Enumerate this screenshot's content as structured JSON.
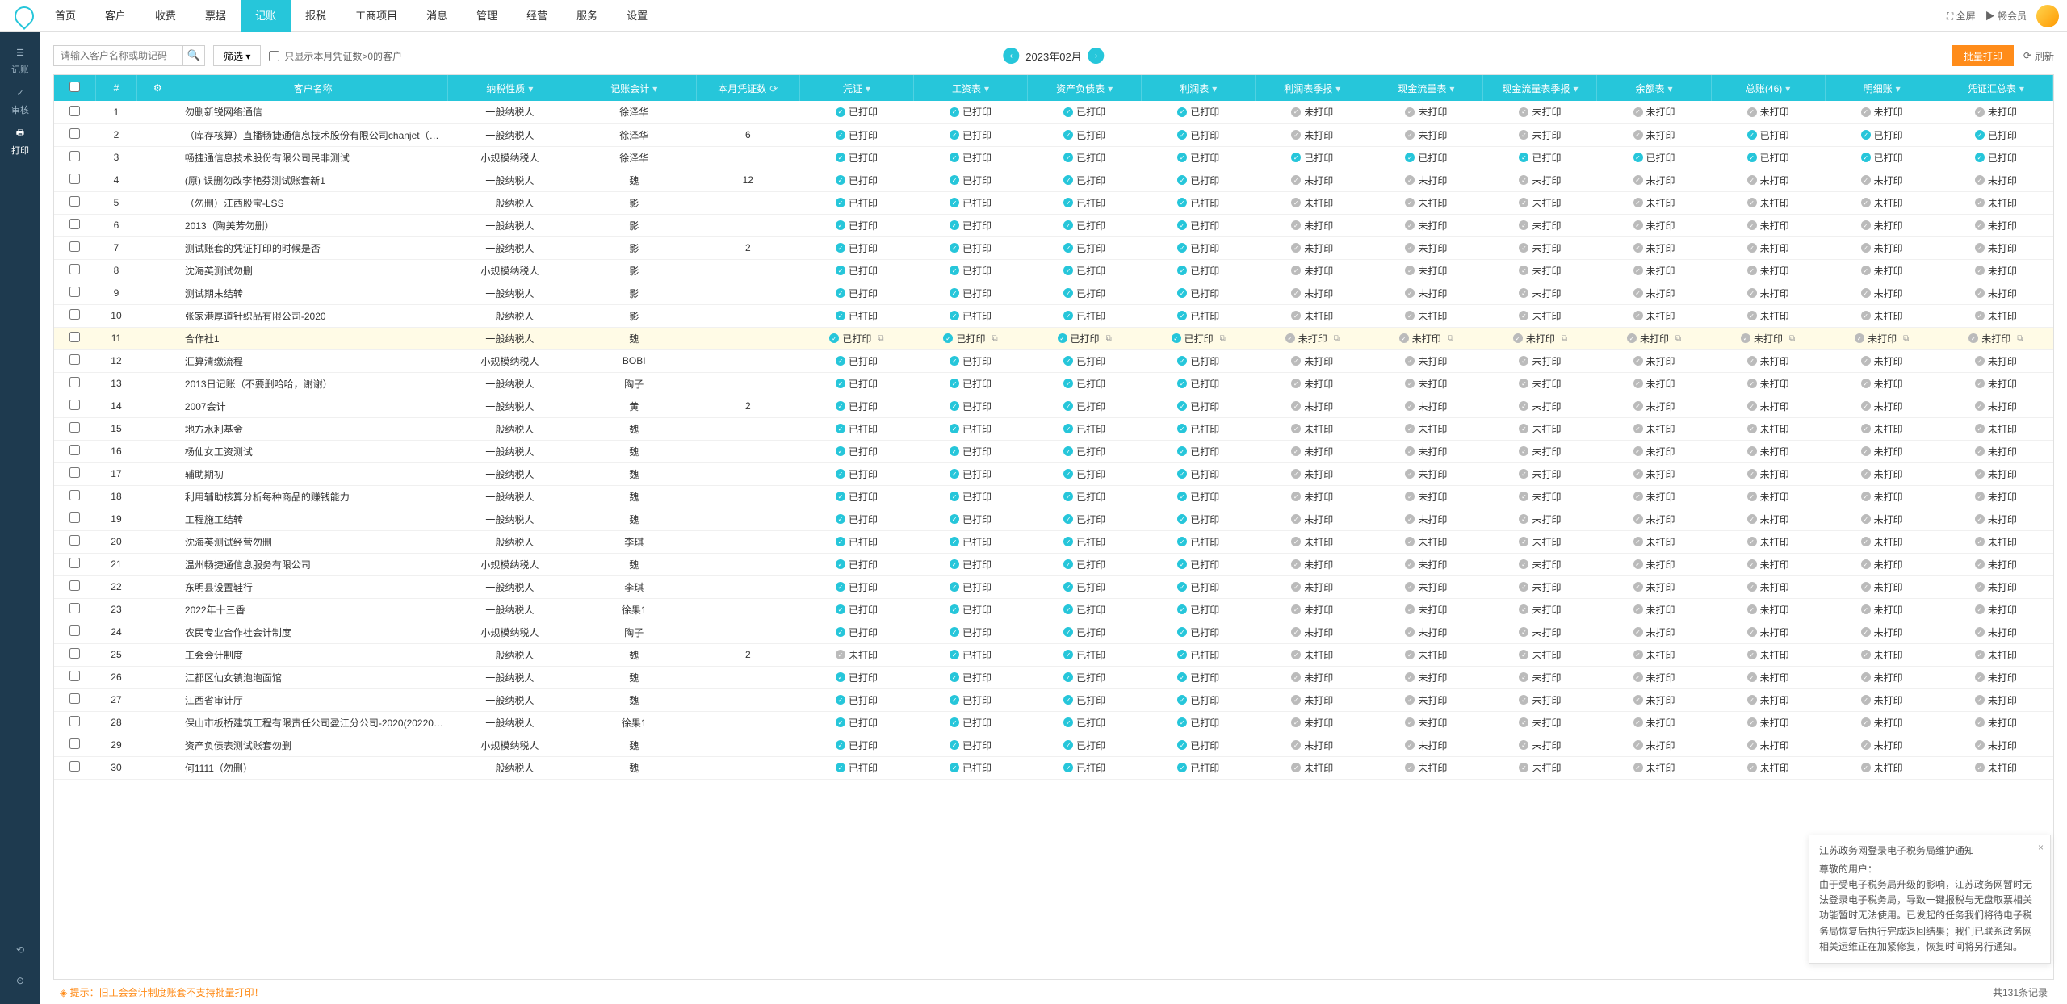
{
  "nav": {
    "tabs": [
      "首页",
      "客户",
      "收费",
      "票据",
      "记账",
      "报税",
      "工商项目",
      "消息",
      "管理",
      "经营",
      "服务",
      "设置"
    ],
    "active": 4,
    "fullscreen": "全屏",
    "vip": "畅会员"
  },
  "sidebar": {
    "items": [
      {
        "icon": "☰",
        "label": "记账"
      },
      {
        "icon": "✓",
        "label": "审核"
      },
      {
        "icon": "🖶",
        "label": "打印"
      }
    ],
    "active": 2,
    "bottom": [
      "⟲",
      "⊙"
    ]
  },
  "toolbar": {
    "search_placeholder": "请输入客户名称或助记码",
    "filter_btn": "筛选 ▾",
    "only_show": "只显示本月凭证数>0的客户",
    "date": "2023年02月",
    "batch_print": "批量打印",
    "refresh": "刷新"
  },
  "columns": [
    "",
    "#",
    "",
    "客户名称",
    "纳税性质",
    "记账会计",
    "本月凭证数",
    "凭证",
    "工资表",
    "资产负债表",
    "利润表",
    "利润表季报",
    "现金流量表",
    "现金流量表季报",
    "余额表",
    "总账(46)",
    "明细账",
    "凭证汇总表"
  ],
  "status": {
    "printed": "已打印",
    "not_printed": "未打印",
    "dash": "——"
  },
  "rows": [
    {
      "n": 1,
      "name": "勿删新锐网络通信",
      "tax": "一般纳税人",
      "acc": "徐泽华",
      "cnt": "",
      "hl": false,
      "ext": false,
      "s": [
        "p",
        "p",
        "p",
        "p",
        "n",
        "n",
        "n",
        "n",
        "n",
        "n",
        "n"
      ]
    },
    {
      "n": 2,
      "name": "（库存核算）直播畅捷通信息技术股份有限公司chanjet（原…",
      "tax": "一般纳税人",
      "acc": "徐泽华",
      "cnt": "6",
      "hl": false,
      "ext": false,
      "s": [
        "p",
        "p",
        "p",
        "p",
        "n",
        "n",
        "n",
        "n",
        "p",
        "p",
        "p"
      ]
    },
    {
      "n": 3,
      "name": "畅捷通信息技术股份有限公司民非测试",
      "tax": "小规模纳税人",
      "acc": "徐泽华",
      "cnt": "",
      "hl": false,
      "ext": false,
      "s": [
        "p",
        "p",
        "p",
        "p",
        "p",
        "p",
        "p",
        "p",
        "p",
        "p",
        "p"
      ]
    },
    {
      "n": 4,
      "name": "(原) 误删勿改李艳芬测试账套新1",
      "tax": "一般纳税人",
      "acc": "魏",
      "cnt": "12",
      "hl": false,
      "ext": false,
      "s": [
        "p",
        "p",
        "p",
        "p",
        "n",
        "n",
        "n",
        "n",
        "n",
        "n",
        "n"
      ]
    },
    {
      "n": 5,
      "name": "（勿删）江西股宝-LSS",
      "tax": "一般纳税人",
      "acc": "影",
      "cnt": "",
      "hl": false,
      "ext": false,
      "s": [
        "p",
        "p",
        "p",
        "p",
        "n",
        "n",
        "n",
        "n",
        "n",
        "n",
        "n"
      ]
    },
    {
      "n": 6,
      "name": "2013（陶美芳勿删）",
      "tax": "一般纳税人",
      "acc": "影",
      "cnt": "",
      "hl": false,
      "ext": false,
      "s": [
        "p",
        "p",
        "p",
        "p",
        "n",
        "n",
        "n",
        "n",
        "n",
        "n",
        "n"
      ]
    },
    {
      "n": 7,
      "name": "测试账套的凭证打印的时候是否",
      "tax": "一般纳税人",
      "acc": "影",
      "cnt": "2",
      "hl": false,
      "ext": false,
      "s": [
        "p",
        "p",
        "p",
        "p",
        "n",
        "n",
        "n",
        "n",
        "n",
        "n",
        "n"
      ]
    },
    {
      "n": 8,
      "name": "沈海英测试勿删",
      "tax": "小规模纳税人",
      "acc": "影",
      "cnt": "",
      "hl": false,
      "ext": false,
      "s": [
        "p",
        "p",
        "p",
        "p",
        "n",
        "n",
        "n",
        "n",
        "n",
        "n",
        "n"
      ]
    },
    {
      "n": 9,
      "name": "测试期末结转",
      "tax": "一般纳税人",
      "acc": "影",
      "cnt": "",
      "hl": false,
      "ext": false,
      "s": [
        "p",
        "p",
        "p",
        "p",
        "n",
        "n",
        "n",
        "n",
        "n",
        "n",
        "n"
      ]
    },
    {
      "n": 10,
      "name": "张家港厚道针织品有限公司-2020",
      "tax": "一般纳税人",
      "acc": "影",
      "cnt": "",
      "hl": false,
      "ext": false,
      "s": [
        "p",
        "p",
        "p",
        "p",
        "n",
        "n",
        "n",
        "n",
        "n",
        "n",
        "n"
      ]
    },
    {
      "n": 11,
      "name": "合作社1",
      "tax": "一般纳税人",
      "acc": "魏",
      "cnt": "",
      "hl": true,
      "ext": true,
      "s": [
        "p",
        "p",
        "p",
        "p",
        "n",
        "n",
        "n",
        "n",
        "n",
        "n",
        "n"
      ]
    },
    {
      "n": 12,
      "name": "汇算清缴流程",
      "tax": "小规模纳税人",
      "acc": "BOBI",
      "cnt": "",
      "hl": false,
      "ext": false,
      "s": [
        "p",
        "p",
        "p",
        "p",
        "n",
        "n",
        "n",
        "n",
        "n",
        "n",
        "n"
      ]
    },
    {
      "n": 13,
      "name": "2013日记账（不要删哈哈，谢谢）",
      "tax": "一般纳税人",
      "acc": "陶子",
      "cnt": "",
      "hl": false,
      "ext": false,
      "s": [
        "p",
        "p",
        "p",
        "p",
        "n",
        "n",
        "n",
        "n",
        "n",
        "n",
        "n"
      ]
    },
    {
      "n": 14,
      "name": "2007会计",
      "tax": "一般纳税人",
      "acc": "黄",
      "cnt": "2",
      "hl": false,
      "ext": false,
      "s": [
        "p",
        "p",
        "p",
        "p",
        "n",
        "n",
        "n",
        "n",
        "n",
        "n",
        "n"
      ]
    },
    {
      "n": 15,
      "name": "地方水利基金",
      "tax": "一般纳税人",
      "acc": "魏",
      "cnt": "",
      "hl": false,
      "ext": false,
      "s": [
        "p",
        "p",
        "p",
        "p",
        "n",
        "n",
        "n",
        "n",
        "n",
        "n",
        "n"
      ]
    },
    {
      "n": 16,
      "name": "杨仙女工资测试",
      "tax": "一般纳税人",
      "acc": "魏",
      "cnt": "",
      "hl": false,
      "ext": false,
      "s": [
        "p",
        "p",
        "p",
        "p",
        "n",
        "n",
        "n",
        "n",
        "n",
        "n",
        "n"
      ]
    },
    {
      "n": 17,
      "name": "辅助期初",
      "tax": "一般纳税人",
      "acc": "魏",
      "cnt": "",
      "hl": false,
      "ext": false,
      "s": [
        "p",
        "p",
        "p",
        "p",
        "n",
        "n",
        "n",
        "n",
        "n",
        "n",
        "n"
      ]
    },
    {
      "n": 18,
      "name": "利用辅助核算分析每种商品的赚钱能力",
      "tax": "一般纳税人",
      "acc": "魏",
      "cnt": "",
      "hl": false,
      "ext": false,
      "s": [
        "p",
        "p",
        "p",
        "p",
        "n",
        "n",
        "n",
        "n",
        "n",
        "n",
        "n"
      ]
    },
    {
      "n": 19,
      "name": "工程施工结转",
      "tax": "一般纳税人",
      "acc": "魏",
      "cnt": "",
      "hl": false,
      "ext": false,
      "s": [
        "p",
        "p",
        "p",
        "p",
        "n",
        "n",
        "n",
        "n",
        "n",
        "n",
        "n"
      ]
    },
    {
      "n": 20,
      "name": "沈海英测试经营勿删",
      "tax": "一般纳税人",
      "acc": "李琪",
      "cnt": "",
      "hl": false,
      "ext": false,
      "s": [
        "p",
        "p",
        "p",
        "p",
        "n",
        "n",
        "n",
        "n",
        "n",
        "n",
        "n"
      ]
    },
    {
      "n": 21,
      "name": "温州畅捷通信息服务有限公司",
      "tax": "小规模纳税人",
      "acc": "魏",
      "cnt": "",
      "hl": false,
      "ext": false,
      "s": [
        "p",
        "p",
        "p",
        "p",
        "n",
        "n",
        "n",
        "n",
        "n",
        "n",
        "n"
      ]
    },
    {
      "n": 22,
      "name": "东明县设置鞋行",
      "tax": "一般纳税人",
      "acc": "李琪",
      "cnt": "",
      "hl": false,
      "ext": false,
      "s": [
        "p",
        "p",
        "p",
        "p",
        "n",
        "n",
        "n",
        "n",
        "n",
        "n",
        "n"
      ]
    },
    {
      "n": 23,
      "name": "2022年十三香",
      "tax": "一般纳税人",
      "acc": "徐果1",
      "cnt": "",
      "hl": false,
      "ext": false,
      "s": [
        "p",
        "p",
        "p",
        "p",
        "n",
        "n",
        "n",
        "n",
        "n",
        "n",
        "n"
      ]
    },
    {
      "n": 24,
      "name": "农民专业合作社会计制度",
      "tax": "小规模纳税人",
      "acc": "陶子",
      "cnt": "",
      "hl": false,
      "ext": false,
      "s": [
        "p",
        "p",
        "p",
        "p",
        "n",
        "n",
        "n",
        "n",
        "n",
        "n",
        "n"
      ]
    },
    {
      "n": 25,
      "name": "工会会计制度",
      "tax": "一般纳税人",
      "acc": "魏",
      "cnt": "2",
      "hl": false,
      "ext": false,
      "s": [
        "n",
        "p",
        "p",
        "p",
        "n",
        "n",
        "n",
        "n",
        "n",
        "n",
        "n"
      ]
    },
    {
      "n": 26,
      "name": "江都区仙女镇泡泡面馆",
      "tax": "一般纳税人",
      "acc": "魏",
      "cnt": "",
      "hl": false,
      "ext": false,
      "s": [
        "p",
        "p",
        "p",
        "p",
        "n",
        "n",
        "n",
        "n",
        "n",
        "n",
        "n"
      ]
    },
    {
      "n": 27,
      "name": "江西省审计厅",
      "tax": "一般纳税人",
      "acc": "魏",
      "cnt": "",
      "hl": false,
      "ext": false,
      "s": [
        "p",
        "p",
        "p",
        "p",
        "n",
        "n",
        "n",
        "n",
        "n",
        "n",
        "n"
      ]
    },
    {
      "n": 28,
      "name": "保山市板桥建筑工程有限责任公司盈江分公司-2020(2022061…",
      "tax": "一般纳税人",
      "acc": "徐果1",
      "cnt": "",
      "hl": false,
      "ext": false,
      "s": [
        "p",
        "p",
        "p",
        "p",
        "n",
        "n",
        "n",
        "n",
        "n",
        "n",
        "n"
      ]
    },
    {
      "n": 29,
      "name": "资产负债表测试账套勿删",
      "tax": "小规模纳税人",
      "acc": "魏",
      "cnt": "",
      "hl": false,
      "ext": false,
      "s": [
        "p",
        "p",
        "p",
        "p",
        "n",
        "n",
        "n",
        "n",
        "n",
        "n",
        "n"
      ]
    },
    {
      "n": 30,
      "name": "何1111（勿删）",
      "tax": "一般纳税人",
      "acc": "魏",
      "cnt": "",
      "hl": false,
      "ext": false,
      "s": [
        "p",
        "p",
        "p",
        "p",
        "n",
        "n",
        "n",
        "n",
        "n",
        "n",
        "n"
      ]
    }
  ],
  "footer": {
    "warning": "◈ 提示：旧工会会计制度账套不支持批量打印！",
    "total": "共131条记录"
  },
  "notif": {
    "title": "江苏政务网登录电子税务局维护通知",
    "greet": "尊敬的用户：",
    "body": "由于受电子税务局升级的影响，江苏政务网暂时无法登录电子税务局，导致一键报税与无盘取票相关功能暂时无法使用。已发起的任务我们将待电子税务局恢复后执行完成返回结果；我们已联系政务网相关运维正在加紧修复，恢复时间将另行通知。"
  },
  "colors": {
    "primary": "#26c6da",
    "sidebar_bg": "#1e3a4f",
    "orange": "#ff8c1a",
    "grey": "#bbbbbb",
    "highlight": "#fffbe6"
  }
}
